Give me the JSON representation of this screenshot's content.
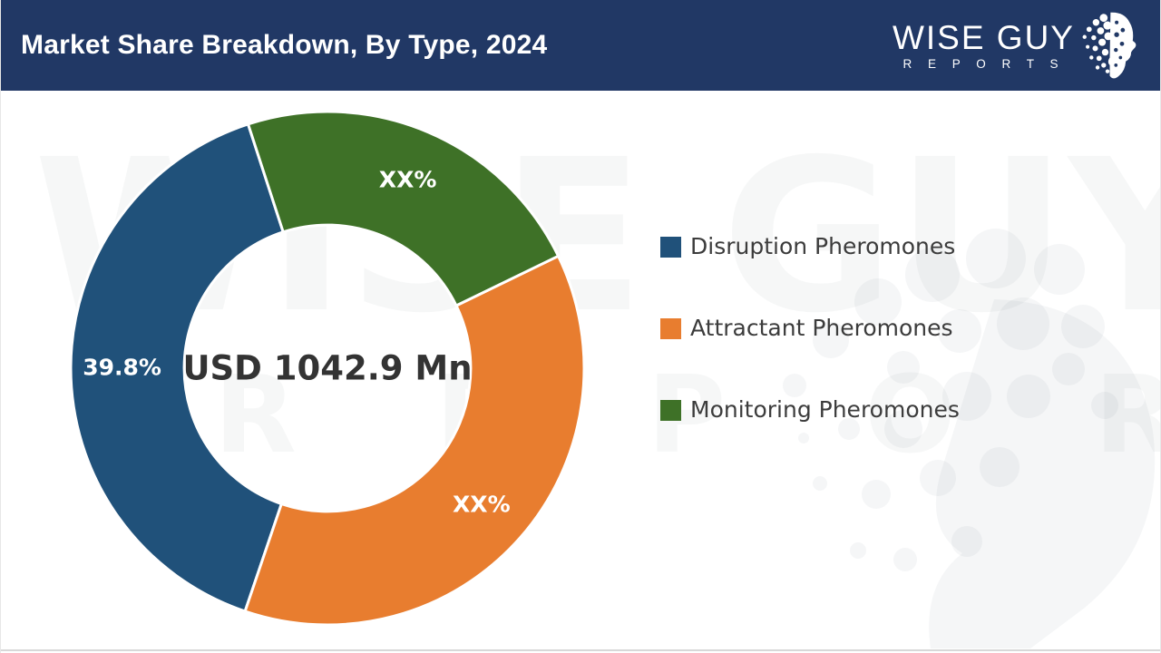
{
  "header": {
    "title": "Market Share Breakdown, By Type, 2024",
    "logo": {
      "name": "WISE GUY",
      "sub": "R E P O R T S"
    }
  },
  "watermark": {
    "brand": "WISE GUY",
    "sub": "R E P O R T S"
  },
  "chart_data": {
    "type": "pie",
    "subtype": "donut",
    "title": "Market Share Breakdown, By Type, 2024",
    "center_text": "USD 1042.9 Mn",
    "start_angle": 108,
    "direction": "counterclockwise",
    "inner_radius_ratio": 0.558,
    "legend_position": "right",
    "series": [
      {
        "name": "Disruption Pheromones",
        "value": 39.8,
        "display_label": "39.8%",
        "color": "#20517A"
      },
      {
        "name": "Attractant Pheromones",
        "value": 37.4,
        "display_label": "XX%",
        "color": "#E87D2F"
      },
      {
        "name": "Monitoring Pheromones",
        "value": 22.8,
        "display_label": "XX%",
        "color": "#3E7127"
      }
    ]
  },
  "legend": {
    "items": [
      {
        "label": "Disruption Pheromones",
        "color": "#20517A"
      },
      {
        "label": "Attractant Pheromones",
        "color": "#E87D2F"
      },
      {
        "label": "Monitoring Pheromones",
        "color": "#3E7127"
      }
    ]
  },
  "colors": {
    "header_bg": "#213865",
    "center_text": "#333333",
    "watermark": "#f4f4f5"
  }
}
